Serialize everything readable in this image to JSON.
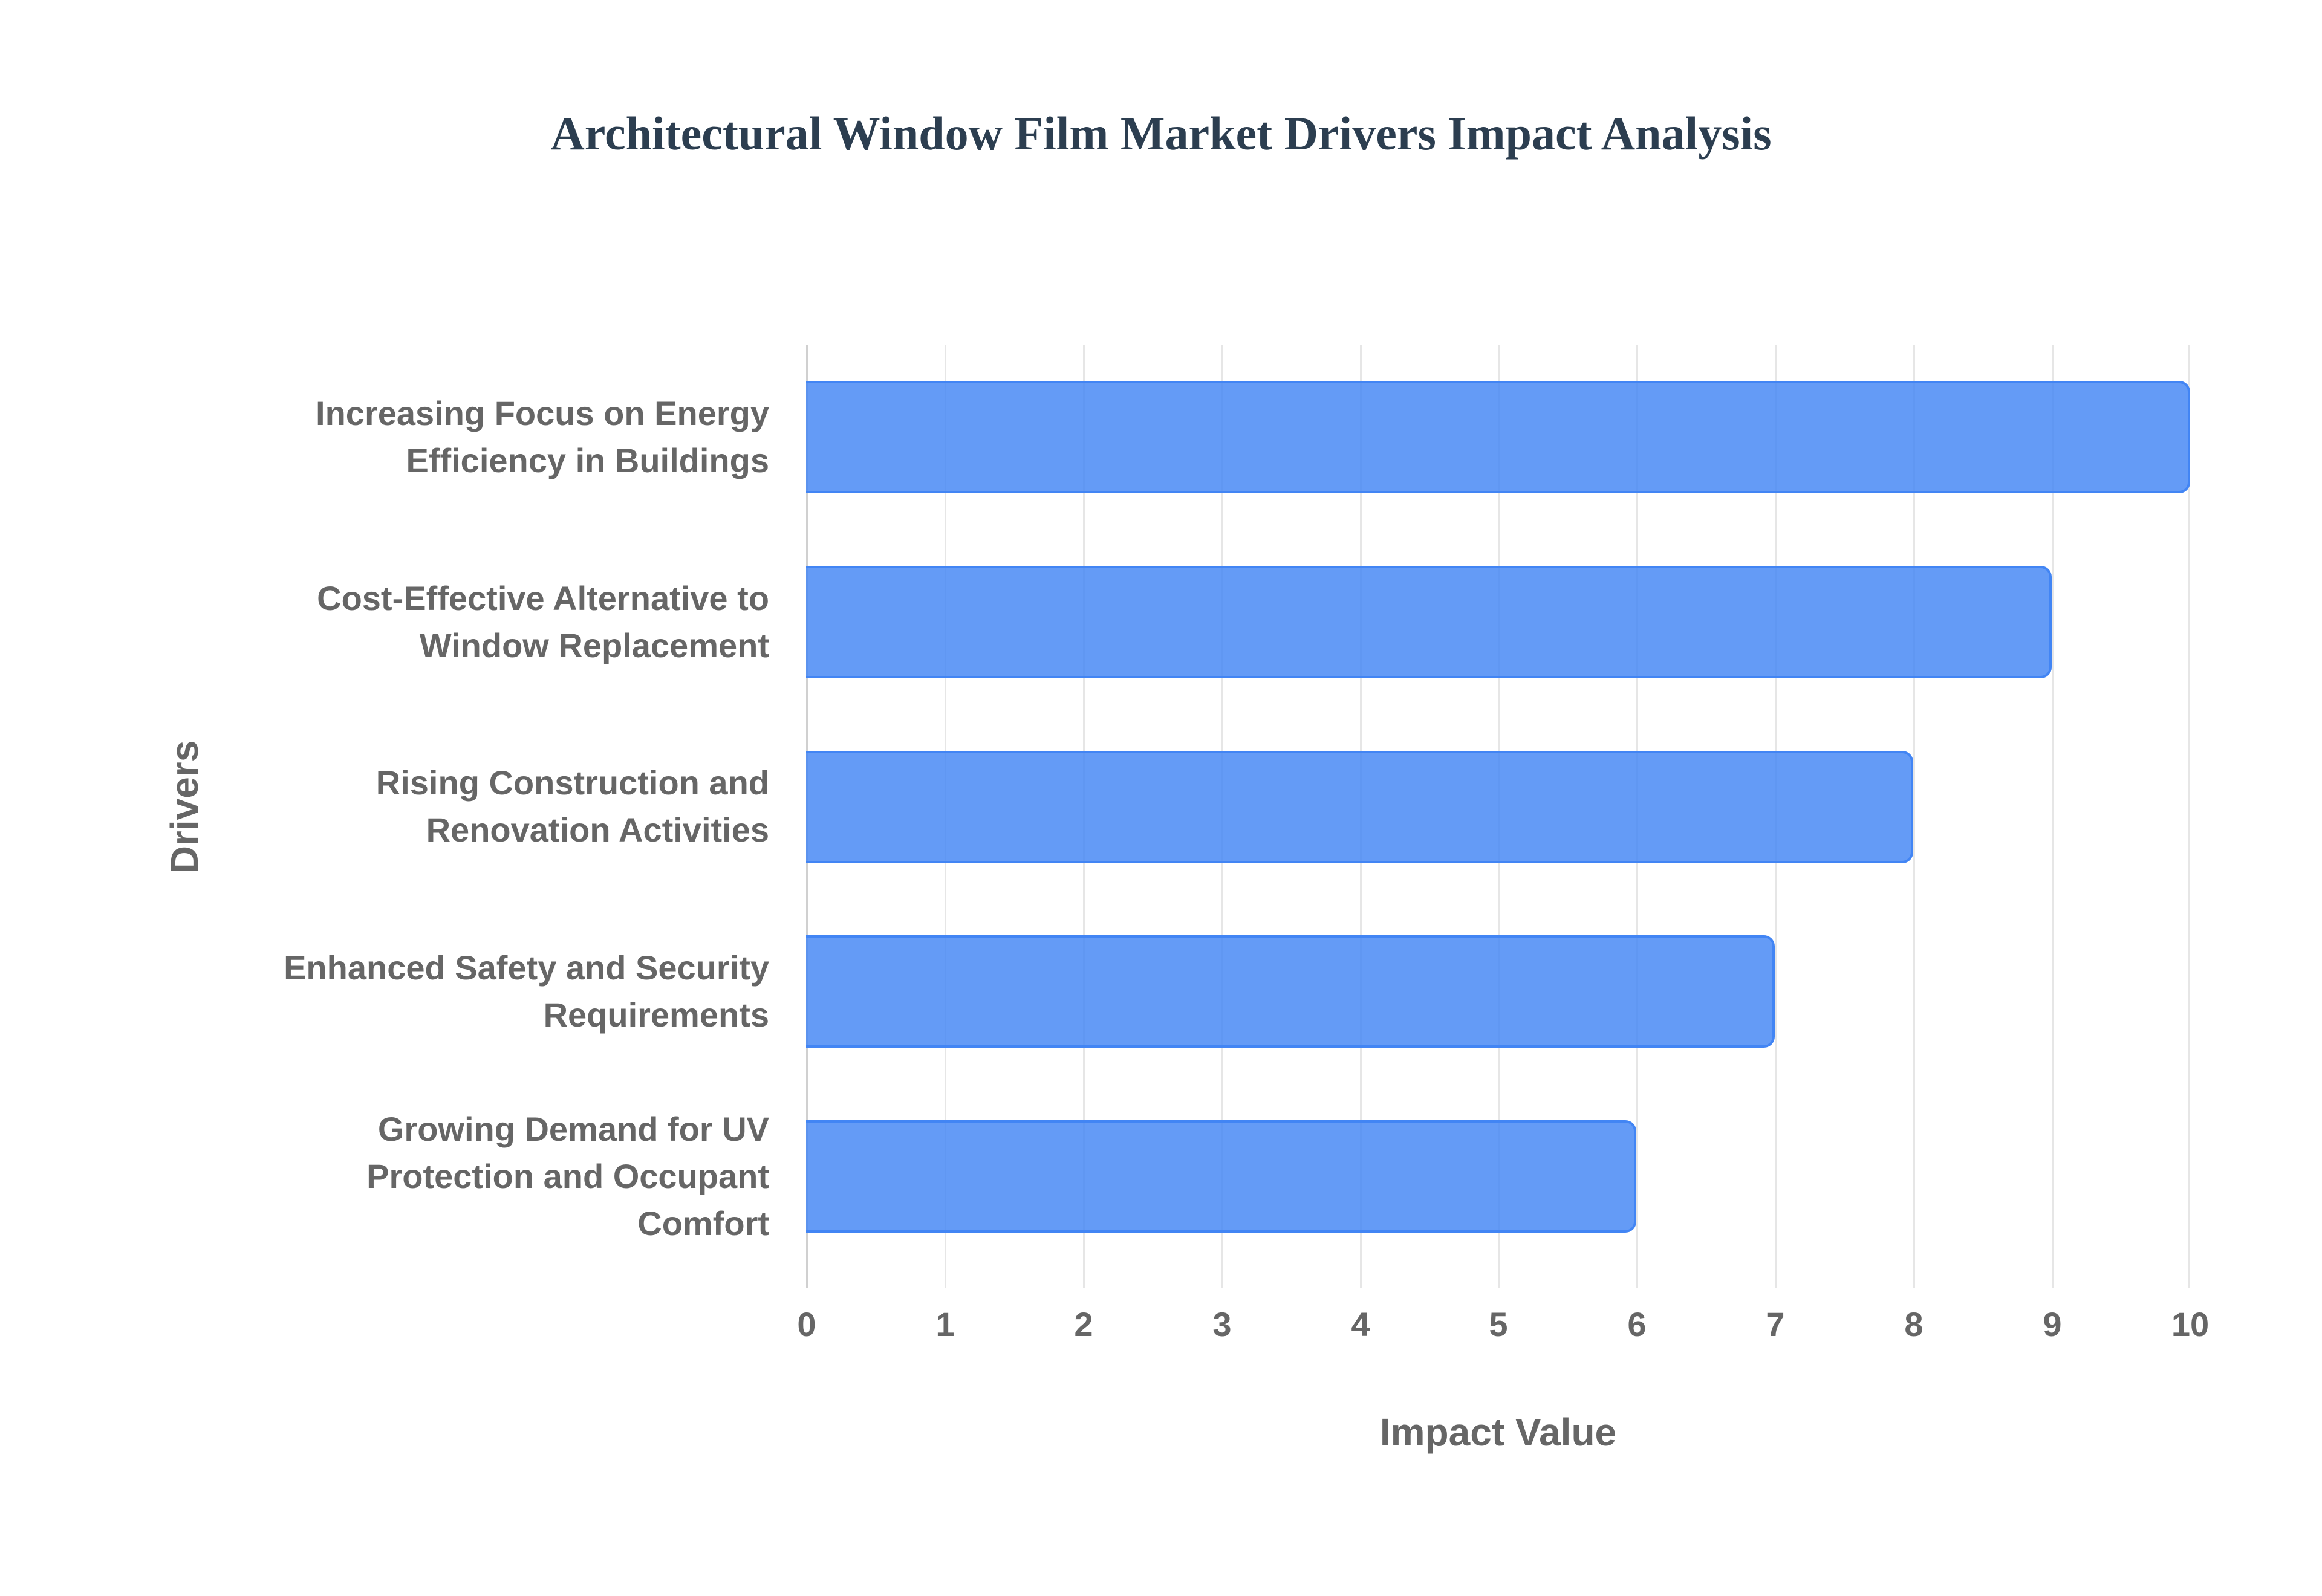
{
  "chart_data": {
    "type": "bar",
    "orientation": "horizontal",
    "title": "Architectural Window Film Market Drivers Impact Analysis",
    "xlabel": "Impact Value",
    "ylabel": "Drivers",
    "xlim": [
      0,
      10
    ],
    "xticks": [
      "0",
      "1",
      "2",
      "3",
      "4",
      "5",
      "6",
      "7",
      "8",
      "9",
      "10"
    ],
    "grid": true,
    "legend": null,
    "categories": [
      "Increasing Focus on Energy Efficiency in Buildings",
      "Cost-Effective Alternative to Window Replacement",
      "Rising Construction and Renovation Activities",
      "Enhanced Safety and Security Requirements",
      "Growing Demand for UV Protection and Occupant Comfort"
    ],
    "category_lines": [
      [
        "Increasing Focus on Energy",
        "Efficiency in Buildings"
      ],
      [
        "Cost-Effective Alternative to",
        "Window Replacement"
      ],
      [
        "Rising Construction and",
        "Renovation Activities"
      ],
      [
        "Enhanced Safety and Security",
        "Requirements"
      ],
      [
        "Growing Demand for UV",
        "Protection and Occupant",
        "Comfort"
      ]
    ],
    "values": [
      10,
      9,
      8,
      7,
      6
    ],
    "colors": {
      "bar_fill": "#5f97f5",
      "bar_border": "#4285f4",
      "title": "#2c3e50",
      "axis_text": "#666666",
      "grid": "#e6e6e6"
    }
  }
}
